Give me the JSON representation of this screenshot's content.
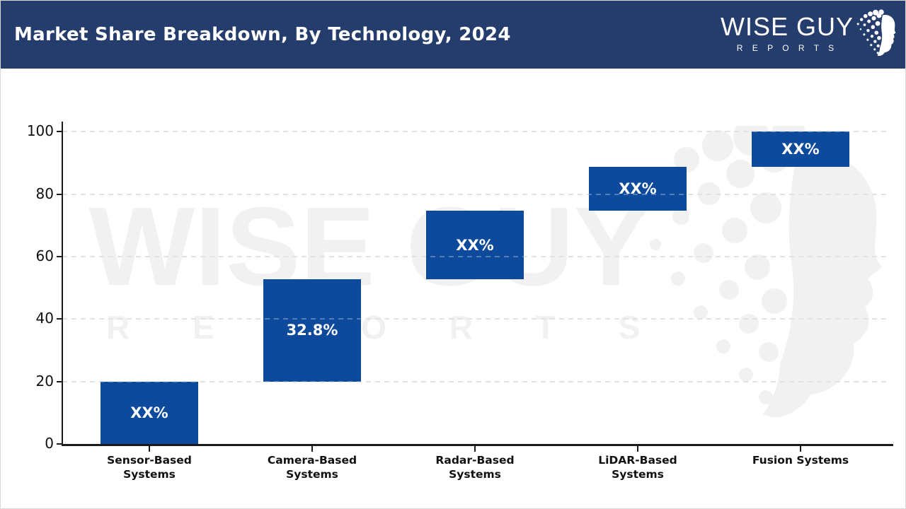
{
  "header": {
    "title": "Market Share Breakdown, By Technology, 2024",
    "bg_color": "#253d6d",
    "logo": {
      "line1": "WISE GUY",
      "line2": "R E P O R T S"
    }
  },
  "watermark": {
    "line1": "WISE GUY",
    "line2": "R E P O R T S"
  },
  "chart_data": {
    "type": "bar",
    "subtype": "waterfall",
    "title": "Market Share Breakdown, By Technology, 2024",
    "xlabel": "",
    "ylabel": "",
    "categories": [
      "Sensor-Based\nSystems",
      "Camera-Based\nSystems",
      "Radar-Based\nSystems",
      "LiDAR-Based\nSystems",
      "Fusion Systems"
    ],
    "segments": [
      {
        "category": "Sensor-Based Systems",
        "start": 0,
        "end": 20,
        "value": 20,
        "label": "XX%"
      },
      {
        "category": "Camera-Based Systems",
        "start": 20,
        "end": 52.8,
        "value": 32.8,
        "label": "32.8%"
      },
      {
        "category": "Radar-Based Systems",
        "start": 52.8,
        "end": 74.6,
        "value": 21.8,
        "label": "XX%"
      },
      {
        "category": "LiDAR-Based Systems",
        "start": 74.6,
        "end": 88.8,
        "value": 14.2,
        "label": "XX%"
      },
      {
        "category": "Fusion Systems",
        "start": 88.8,
        "end": 100,
        "value": 11.2,
        "label": "XX%"
      }
    ],
    "y_ticks": [
      0,
      20,
      40,
      60,
      80,
      100
    ],
    "ylim": [
      0,
      103.2
    ],
    "grid": "horizontal-dashed",
    "legend": "none",
    "bar_color": "#0d4a9c",
    "grid_color": "#d7d7d7",
    "axis_color": "#1a1a1a",
    "label_color": "#ffffff"
  }
}
